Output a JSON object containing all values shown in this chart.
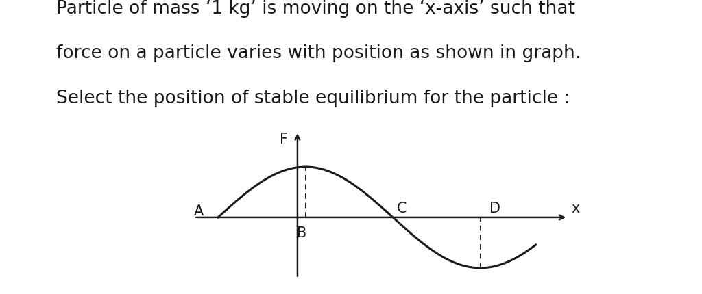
{
  "text_line1": "Particle of mass ‘1 kg’ is moving on the ‘x-axis’ such that",
  "text_line2": "force on a particle varies with position as shown in graph.",
  "text_line3": "Select the position of stable equilibrium for the particle :",
  "bg_color": "#ffffff",
  "curve_color": "#1a1a1a",
  "axis_color": "#1a1a1a",
  "dashed_color": "#1a1a1a",
  "text_color": "#1a1a1a",
  "label_A": "A",
  "label_B": "B",
  "label_C": "C",
  "label_D": "D",
  "label_F": "F",
  "label_x": "x",
  "font_size_text": 19,
  "font_size_label": 15,
  "x_A": -1.0,
  "x_C": 1.2,
  "x_D": 2.2,
  "x_end": 3.0,
  "amplitude": 1.0,
  "xlim": [
    -1.8,
    3.5
  ],
  "ylim": [
    -1.4,
    1.8
  ]
}
